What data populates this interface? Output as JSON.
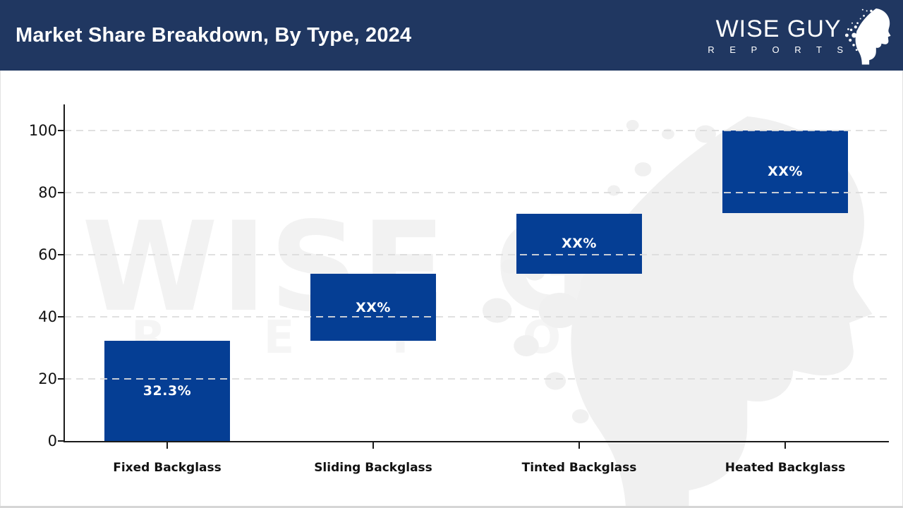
{
  "header": {
    "title": "Market Share Breakdown, By Type, 2024",
    "brand": {
      "line1": "WISE GUY",
      "line2": "R E P O R T S"
    },
    "bg_color": "#203761"
  },
  "watermark": {
    "line1": "WISE GUY",
    "line2": "R E P O R T S"
  },
  "chart_data": {
    "type": "bar",
    "subtype": "floating-waterfall",
    "title": "Market Share Breakdown, By Type, 2024",
    "categories": [
      "Fixed Backglass",
      "Sliding Backglass",
      "Tinted Backglass",
      "Heated Backglass"
    ],
    "segments": [
      {
        "category": "Fixed Backglass",
        "start": 0,
        "end": 32.3,
        "label": "32.3%"
      },
      {
        "category": "Sliding Backglass",
        "start": 32.3,
        "end": 53.8,
        "label": "XX%"
      },
      {
        "category": "Tinted Backglass",
        "start": 54.0,
        "end": 73.2,
        "label": "XX%"
      },
      {
        "category": "Heated Backglass",
        "start": 73.5,
        "end": 100,
        "label": "XX%"
      }
    ],
    "yticks": [
      0,
      20,
      40,
      60,
      80,
      100
    ],
    "ylim": [
      0,
      108
    ],
    "xlabel": "",
    "ylabel": "",
    "grid": true,
    "legend": false,
    "bar_color": "#053e94",
    "grid_color": "#dcdcdc",
    "label_color": "#ffffff"
  }
}
